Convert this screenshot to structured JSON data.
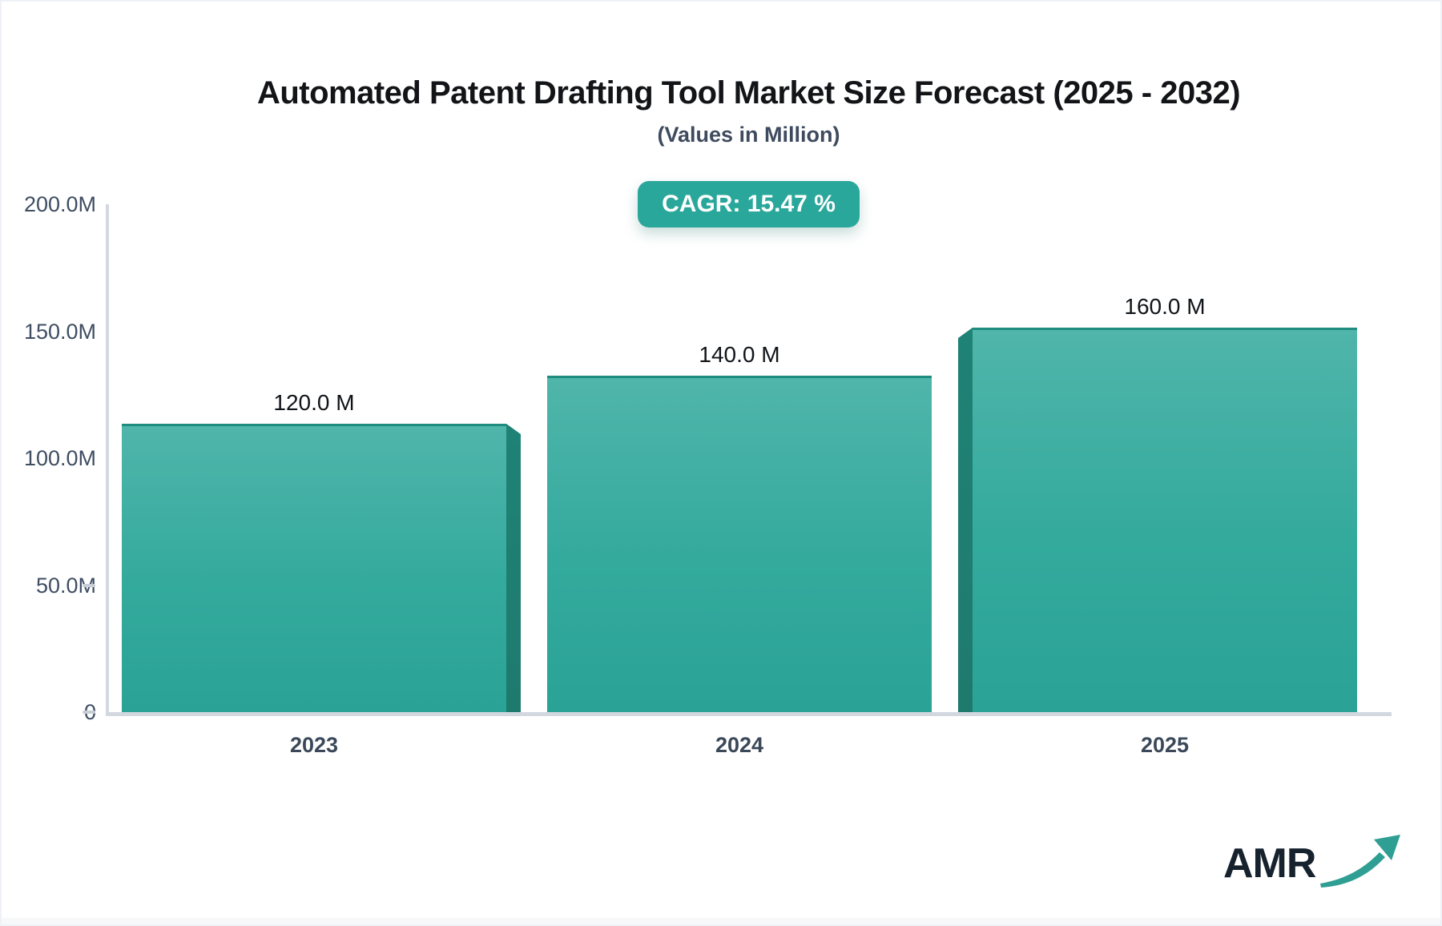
{
  "page": {
    "title": "Automated Patent Drafting Tool Market Size Forecast (2025 - 2032)",
    "subtitle": "(Values in Million)",
    "cagr_badge": "CAGR: 15.47 %",
    "logo_text": "AMR"
  },
  "colors": {
    "bar_gradient_top": "#50b5ab",
    "bar_gradient_bottom": "#2aa296",
    "bar_top_border": "#1e8c7f",
    "bar_3d_side": "#1f7a6e",
    "badge_bg": "#2aa79b",
    "badge_text": "#ffffff",
    "axis_line": "#d3d8e0",
    "axis_text": "#3f4e63",
    "title_text": "#121417",
    "subtitle_text": "#3e4a5e",
    "logo_text": "#16222e",
    "logo_arrow": "#2f9e93"
  },
  "chart_data": {
    "type": "bar",
    "title": "Automated Patent Drafting Tool Market Size Forecast (2025 - 2032)",
    "subtitle": "(Values in Million)",
    "cagr_label": "CAGR: 15.47 %",
    "categories": [
      "2023",
      "2024",
      "2025"
    ],
    "values": [
      120.0,
      140.0,
      160.0
    ],
    "value_labels": [
      "120.0 M",
      "140.0 M",
      "160.0 M"
    ],
    "ylim": [
      0,
      200
    ],
    "yticks": [
      {
        "label": "200.0M",
        "value": 200,
        "dash": false
      },
      {
        "label": "150.0M",
        "value": 150,
        "dash": false
      },
      {
        "label": "100.0M",
        "value": 100,
        "dash": false
      },
      {
        "label": "50.0M",
        "value": 50,
        "dash": true
      },
      {
        "label": "0",
        "value": 0,
        "dash": true
      }
    ],
    "grid": false,
    "legend": false,
    "bar_3d_sides": [
      "right",
      "none",
      "left"
    ]
  }
}
